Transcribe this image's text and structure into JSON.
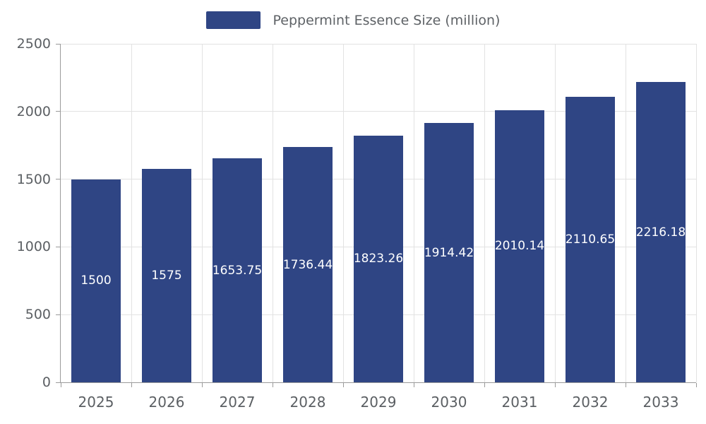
{
  "chart_data": {
    "type": "bar",
    "title": "Peppermint Essence Size (million)",
    "categories": [
      "2025",
      "2026",
      "2027",
      "2028",
      "2029",
      "2030",
      "2031",
      "2032",
      "2033"
    ],
    "values": [
      1500,
      1575,
      1653.75,
      1736.44,
      1823.26,
      1914.42,
      2010.14,
      2110.65,
      2216.18
    ],
    "labels": [
      "1500",
      "1575",
      "1653.75",
      "1736.44",
      "1823.26",
      "1914.42",
      "2010.14",
      "2110.65",
      "2216.18"
    ],
    "xlabel": "",
    "ylabel": "",
    "ylim": [
      0,
      2500
    ],
    "yticks": [
      0,
      500,
      1000,
      1500,
      2000,
      2500
    ],
    "grid": true,
    "legend_position": "top",
    "colors": {
      "bar": "#2f4584",
      "label": "#ffffff",
      "grid": "#e2e2e2",
      "axis": "#9a9a9a",
      "text": "#5b5f63"
    }
  }
}
